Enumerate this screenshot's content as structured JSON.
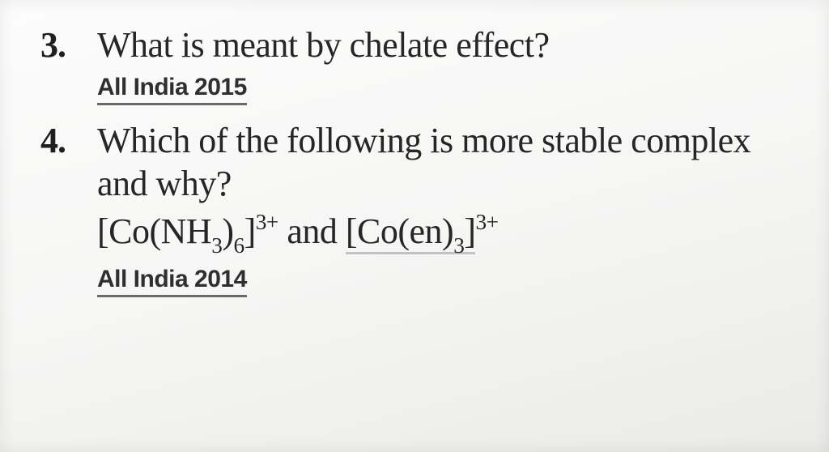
{
  "questions": [
    {
      "number": "3.",
      "text": "What is meant by chelate effect?",
      "tag": "All India 2015"
    },
    {
      "number": "4.",
      "text": "Which of the following is more stable complex and why?",
      "formula_parts": {
        "f1_open": "[Co(NH",
        "f1_sub1": "3",
        "f1_close_inner": ")",
        "f1_sub2": "6",
        "f1_close": "]",
        "f1_sup": "3+",
        "conj": " and ",
        "f2_open": "[Co(en)",
        "f2_sub": "3",
        "f2_close": "]",
        "f2_sup": "3+"
      },
      "tag": "All India 2014"
    }
  ]
}
